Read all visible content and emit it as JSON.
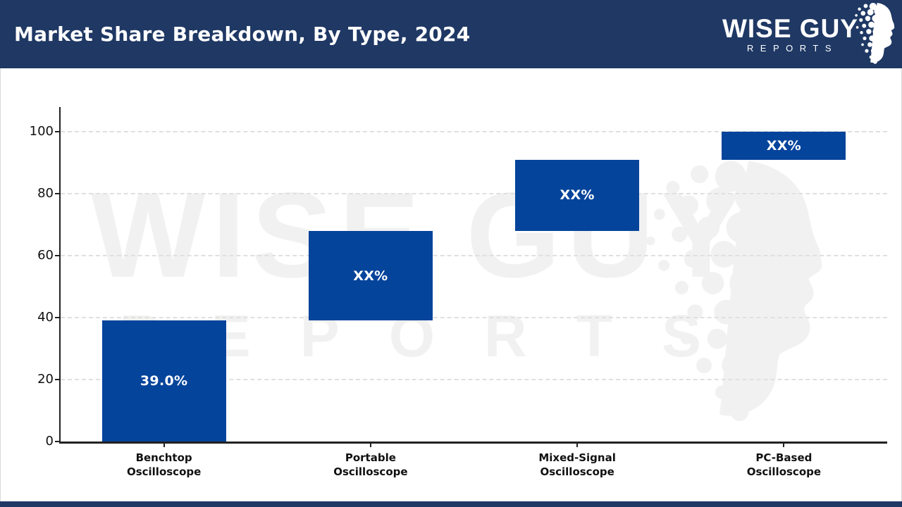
{
  "header": {
    "title": "Market Share Breakdown, By Type, 2024",
    "logo": {
      "primary": "WISE GUY",
      "secondary": "REPORTS"
    }
  },
  "watermark": {
    "primary": "WISE GUY",
    "secondary": "REPORTS"
  },
  "chart_data": {
    "type": "bar",
    "subtype": "waterfall-floating-bars",
    "title": "Market Share Breakdown, By Type, 2024",
    "categories": [
      "Benchtop Oscilloscope",
      "Portable Oscilloscope",
      "Mixed-Signal Oscilloscope",
      "PC-Based Oscilloscope"
    ],
    "category_lines": [
      [
        "Benchtop",
        "Oscilloscope"
      ],
      [
        "Portable",
        "Oscilloscope"
      ],
      [
        "Mixed-Signal",
        "Oscilloscope"
      ],
      [
        "PC-Based",
        "Oscilloscope"
      ]
    ],
    "segments": [
      {
        "category": "Benchtop Oscilloscope",
        "start": 0,
        "end": 39,
        "value": 39,
        "label": "39.0%"
      },
      {
        "category": "Portable Oscilloscope",
        "start": 39,
        "end": 68,
        "value": 29,
        "label": "XX%"
      },
      {
        "category": "Mixed-Signal Oscilloscope",
        "start": 68,
        "end": 91,
        "value": 23,
        "label": "XX%"
      },
      {
        "category": "PC-Based Oscilloscope",
        "start": 91,
        "end": 100,
        "value": 9,
        "label": "XX%"
      }
    ],
    "yticks": [
      0,
      20,
      40,
      60,
      80,
      100
    ],
    "ylim": [
      0,
      108
    ],
    "xlabel": "",
    "ylabel": "",
    "grid": "horizontal-dashed",
    "legend": false,
    "bar_color": "#05449b",
    "bar_label_color": "#ffffff"
  },
  "colors": {
    "header_bg": "#1f3864",
    "footer_bg": "#1f3864",
    "bar": "#05449b",
    "watermark": "#f1f1f1",
    "gridline": "#e0e0e0",
    "axis": "#222222"
  }
}
